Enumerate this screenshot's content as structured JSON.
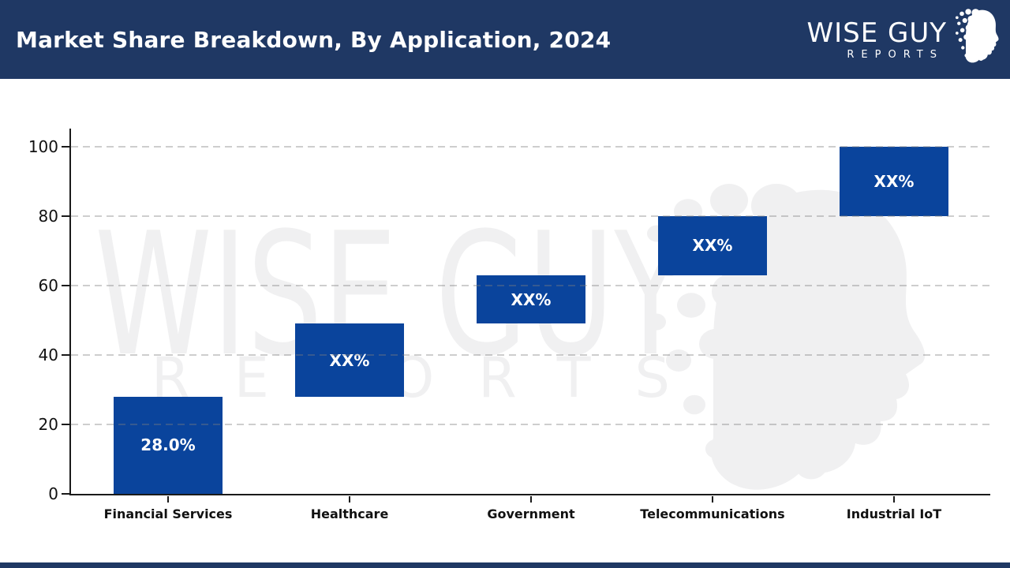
{
  "header": {
    "title": "Market Share Breakdown, By Application, 2024",
    "logo": {
      "name": "WISE GUY",
      "tagline": "REPORTS",
      "icon": "face-profile-dots-icon"
    }
  },
  "watermark": {
    "name": "WISE GUY",
    "tagline": "REPORTS",
    "icon": "face-profile-dots-icon"
  },
  "colors": {
    "navy_header": "#1f3864",
    "bar_blue": "#0a449c",
    "axis_black": "#1a1a1a",
    "grid_gray": "rgba(125,125,125,0.38)",
    "watermark_gray": "#f0f0f1",
    "value_label_white": "#ffffff"
  },
  "chart_data": {
    "type": "bar",
    "subtype": "waterfall",
    "title": "Market Share Breakdown, By Application, 2024",
    "categories": [
      "Financial Services",
      "Healthcare",
      "Government",
      "Telecommunications",
      "Industrial IoT"
    ],
    "bars": [
      {
        "category": "Financial Services",
        "start": 0,
        "end": 28,
        "value": 28,
        "label": "28.0%"
      },
      {
        "category": "Healthcare",
        "start": 28,
        "end": 49,
        "value": 21,
        "label": "XX%"
      },
      {
        "category": "Government",
        "start": 49,
        "end": 63,
        "value": 14,
        "label": "XX%"
      },
      {
        "category": "Telecommunications",
        "start": 63,
        "end": 80,
        "value": 17,
        "label": "XX%"
      },
      {
        "category": "Industrial IoT",
        "start": 80,
        "end": 100,
        "value": 20,
        "label": "XX%"
      }
    ],
    "xlabel": "",
    "ylabel": "",
    "ylim": [
      0,
      105
    ],
    "yticks": [
      0,
      20,
      40,
      60,
      80,
      100
    ],
    "grid": "horizontal-dashed",
    "legend": "none",
    "bar_color": "#0a449c",
    "value_label_color": "#ffffff"
  }
}
